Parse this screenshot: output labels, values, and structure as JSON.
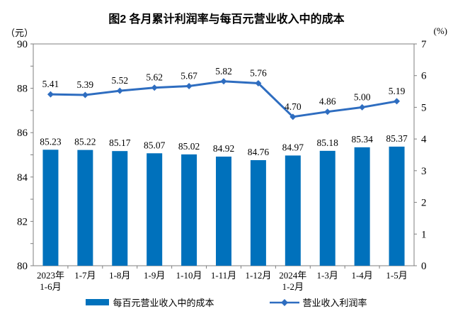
{
  "title": "图2 各月累计利润率与每百元营业收入中的成本",
  "axes": {
    "left_unit": "（元）",
    "right_unit": "(%)",
    "left_tick_labels": [
      "90",
      "88",
      "86",
      "84",
      "82",
      "80"
    ],
    "right_tick_labels": [
      "7",
      "6",
      "5",
      "4",
      "3",
      "2",
      "1",
      "0"
    ]
  },
  "chart_data": {
    "type": "bar+line combo, dual axis",
    "title": "图2 各月累计利润率与每百元营业收入中的成本",
    "categories": [
      "2023年\n1-6月",
      "1-7月",
      "1-8月",
      "1-9月",
      "1-10月",
      "1-11月",
      "1-12月",
      "2024年\n1-2月",
      "1-3月",
      "1-4月",
      "1-5月"
    ],
    "series": [
      {
        "name": "每百元营业收入中的成本",
        "type": "bar",
        "axis": "left",
        "unit": "元",
        "color": "#0071bc",
        "values": [
          85.23,
          85.22,
          85.17,
          85.07,
          85.02,
          84.92,
          84.76,
          84.97,
          85.18,
          85.34,
          85.37
        ]
      },
      {
        "name": "营业收入利润率",
        "type": "line",
        "axis": "right",
        "unit": "%",
        "color": "#2e6dc0",
        "marker": "diamond",
        "values": [
          5.41,
          5.39,
          5.52,
          5.62,
          5.67,
          5.82,
          5.76,
          4.7,
          4.86,
          5.0,
          5.19
        ]
      }
    ],
    "left_ylim": [
      80,
      90
    ],
    "right_ylim": [
      0,
      7
    ],
    "left_tick_step": 1,
    "left_label_step": 2,
    "right_tick_step": 1,
    "grid": false,
    "data_labels": true,
    "legend_position": "bottom"
  },
  "legend": {
    "bar_label": "每百元营业收入中的成本",
    "line_label": "营业收入利润率"
  },
  "style": {
    "axis_color": "#7f7f7f",
    "text_color": "#000000"
  }
}
